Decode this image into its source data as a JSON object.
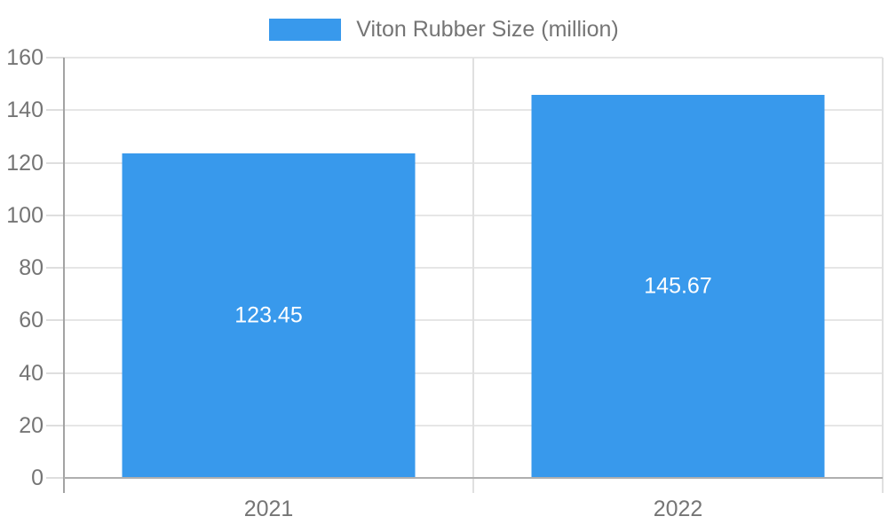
{
  "legend": {
    "label": "Viton Rubber Size (million)"
  },
  "colors": {
    "bar": "#3899EC",
    "bar_label": "#FFFFFF",
    "axis_text": "#757575",
    "grid": "#E6E6E6",
    "tick": "#DEDEDE",
    "boundary": "#E0E0E0",
    "y_axis_line": "#A3A3A3",
    "x_axis_line": "#AFAFAF",
    "background": "#FFFFFF"
  },
  "chart_data": {
    "type": "bar",
    "categories": [
      "2021",
      "2022"
    ],
    "series": [
      {
        "name": "Viton Rubber Size (million)",
        "values": [
          123.45,
          145.67
        ]
      }
    ],
    "data_labels": [
      "123.45",
      "145.67"
    ],
    "title": "",
    "xlabel": "",
    "ylabel": "",
    "ylim": [
      0,
      160
    ],
    "yticks": [
      0,
      20,
      40,
      60,
      80,
      100,
      120,
      140,
      160
    ],
    "grid": true,
    "legend_position": "top-center",
    "data_label_position": "inside-middle",
    "bar_slot_fraction": 0.718
  }
}
